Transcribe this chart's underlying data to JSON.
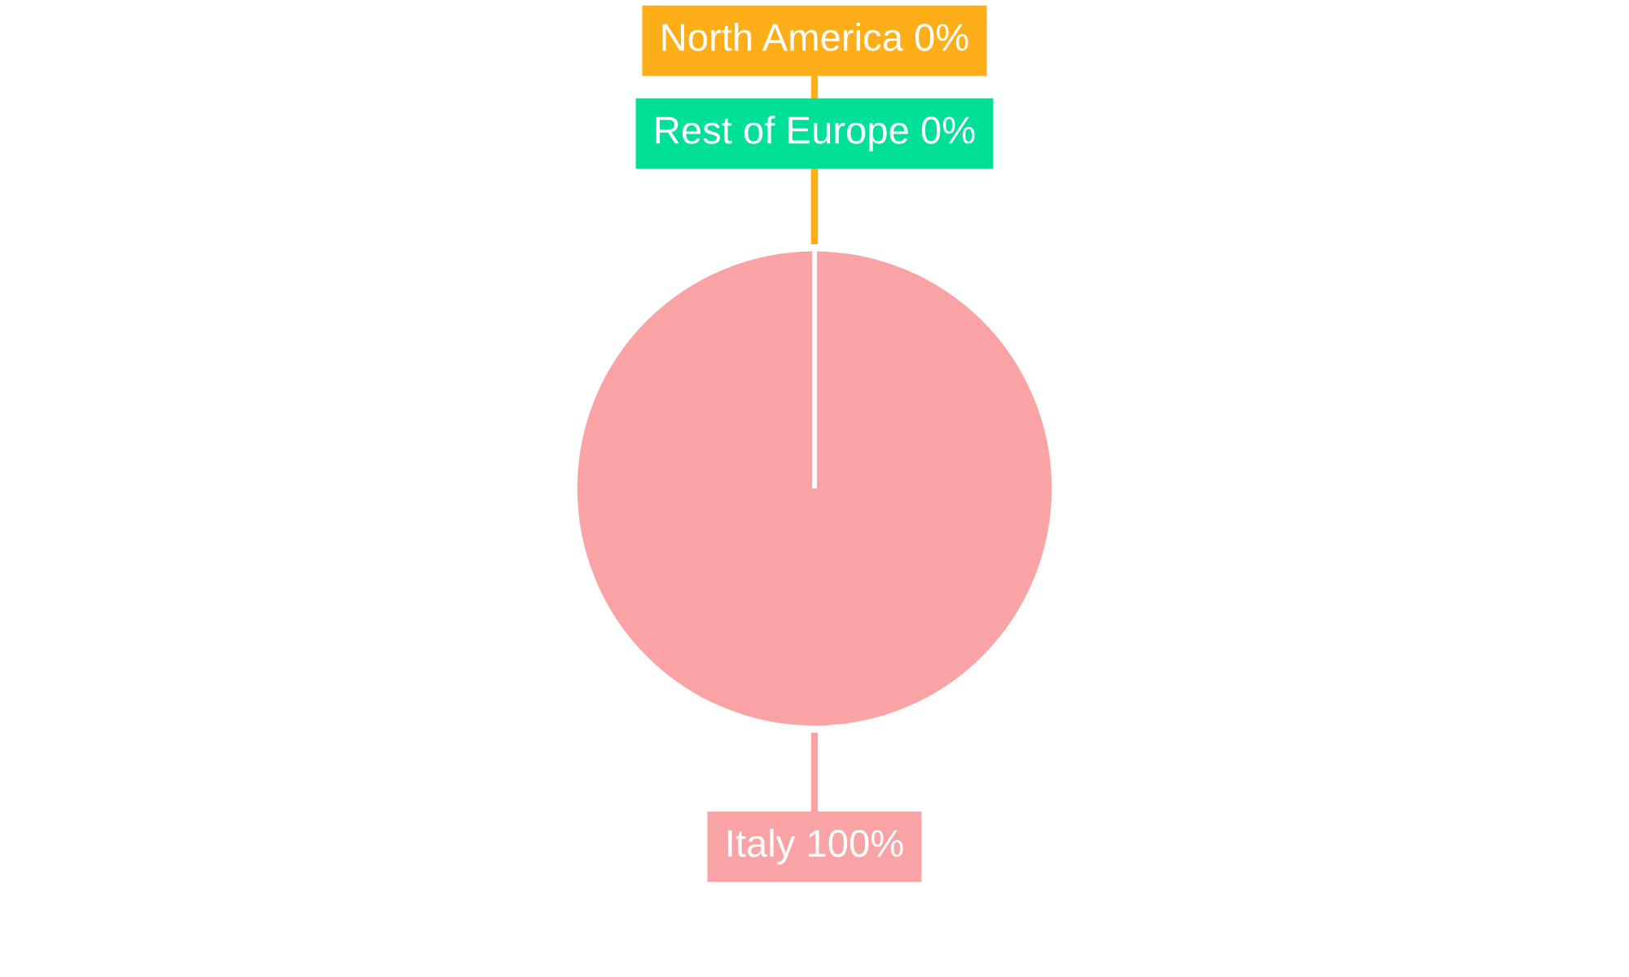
{
  "chart_data": {
    "type": "pie",
    "categories": [
      "Italy",
      "Rest of Europe",
      "North America"
    ],
    "values": [
      100,
      0,
      0
    ],
    "colors": [
      "#f9a3a4",
      "#00e096",
      "#fdae19"
    ],
    "value_labels": [
      "100%",
      "0%",
      "0%"
    ],
    "legend": false
  }
}
